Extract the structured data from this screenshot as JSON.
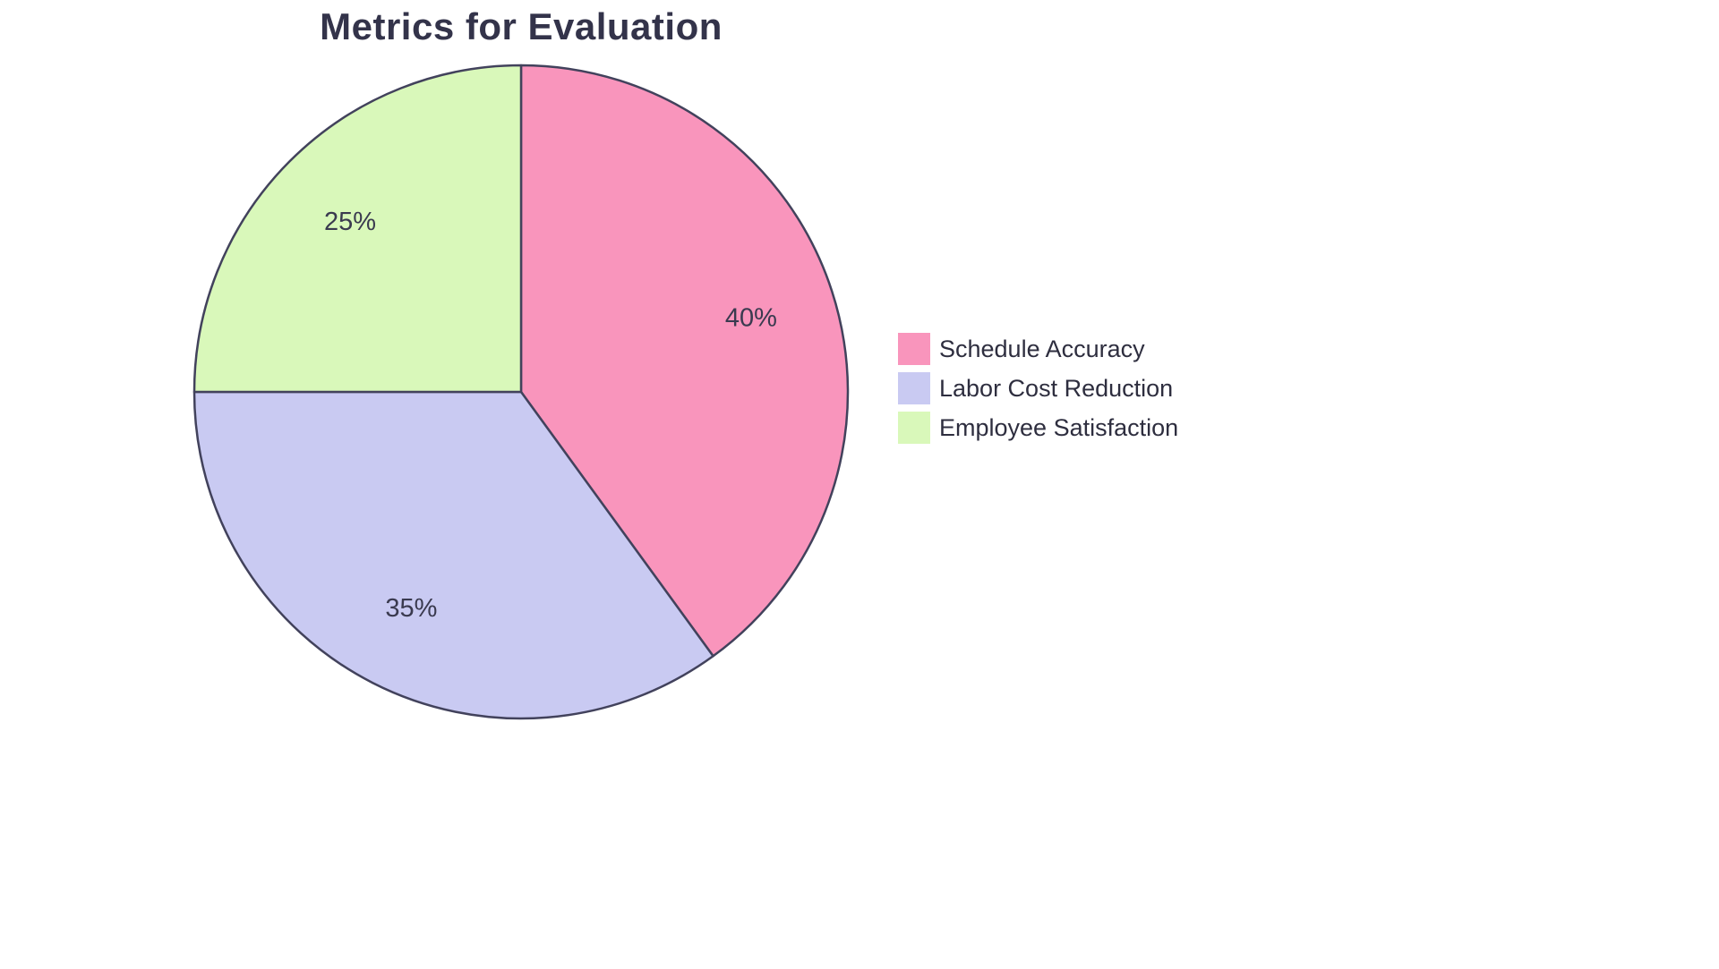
{
  "chart_data": {
    "type": "pie",
    "title": "Metrics for Evaluation",
    "labels": [
      "Schedule Accuracy",
      "Labor Cost Reduction",
      "Employee Satisfaction"
    ],
    "values": [
      40,
      35,
      25
    ],
    "slice_labels": [
      "40%",
      "35%",
      "25%"
    ],
    "colors": [
      "#F995BC",
      "#C9CAF2",
      "#D9F8BA"
    ],
    "stroke_color": "#42425C",
    "stroke_width": 2.5,
    "slice_label_color": "#3A3A4F",
    "title_color": "#33334A",
    "start_angle": 0,
    "legend_position": "right",
    "legend": [
      {
        "label": "Schedule Accuracy",
        "color": "#F995BC"
      },
      {
        "label": "Labor Cost Reduction",
        "color": "#C9CAF2"
      },
      {
        "label": "Employee Satisfaction",
        "color": "#D9F8BA"
      }
    ]
  }
}
